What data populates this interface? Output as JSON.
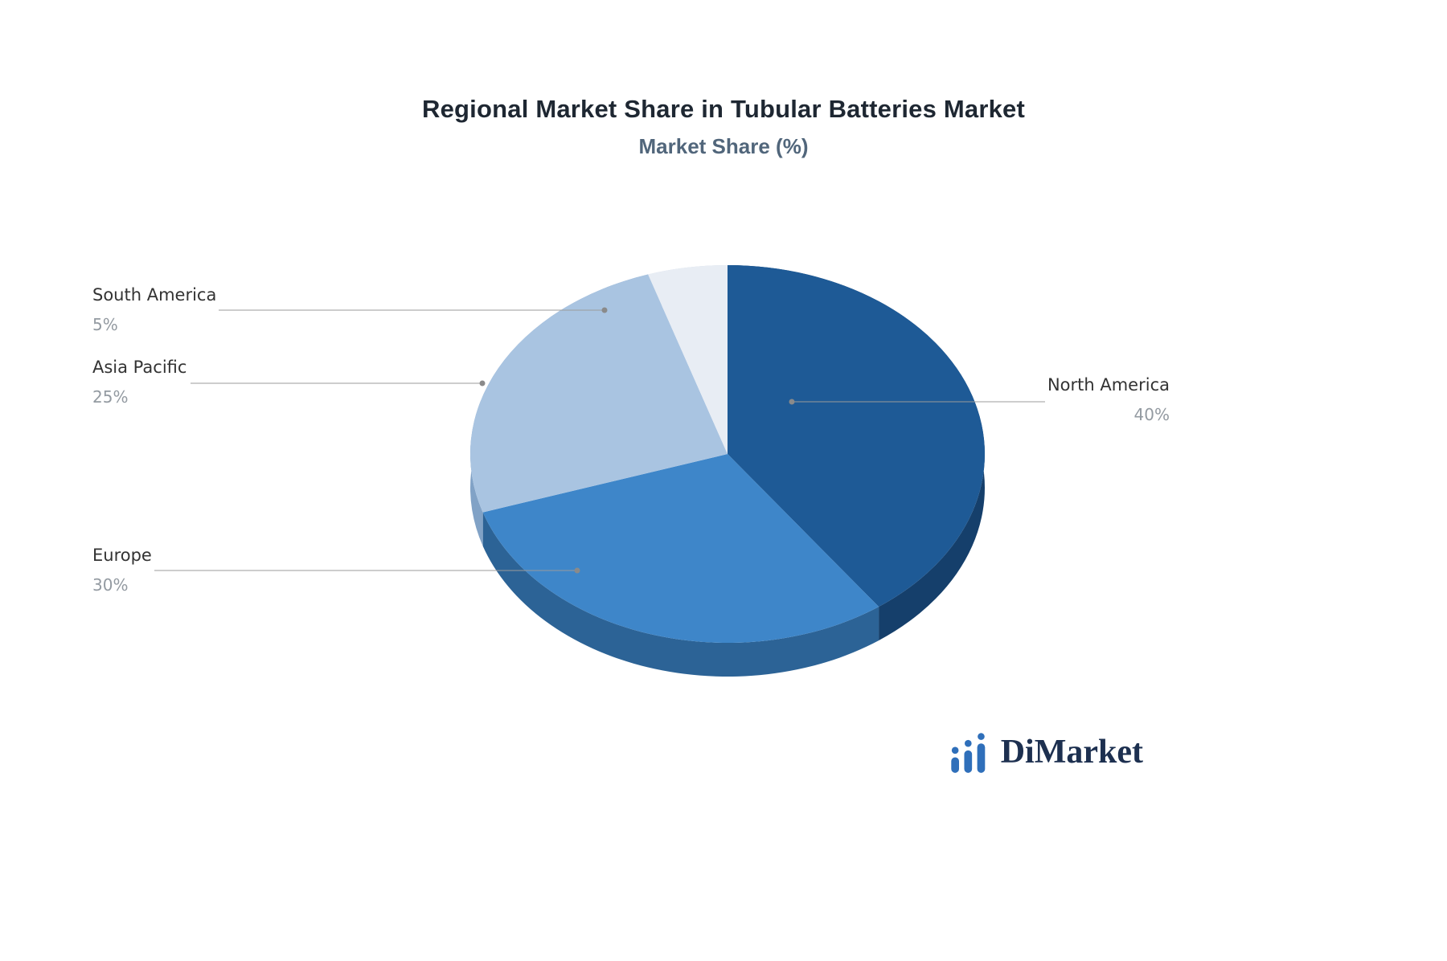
{
  "chart_data": {
    "type": "pie",
    "title": "Regional Market Share in Tubular Batteries Market",
    "subtitle": "Market Share (%)",
    "unit": "%",
    "labels": [
      "North America",
      "Europe",
      "Asia Pacific",
      "South America"
    ],
    "values": [
      40,
      30,
      25,
      5
    ],
    "value_labels": [
      "40%",
      "30%",
      "25%",
      "5%"
    ],
    "colors": [
      "#1e5a96",
      "#3e86c9",
      "#a9c4e1",
      "#e8edf4"
    ],
    "side_colors": [
      "#153f6b",
      "#2c6396",
      "#81a2c6",
      "#c6d2e2"
    ],
    "start_angle_deg": 0,
    "direction": "clockwise",
    "style": "pie-3d",
    "legend_position": "none",
    "grid": false,
    "label_name_color": "#333333",
    "label_value_color": "#939aa1",
    "leader_line_color": "#9b9b9b"
  },
  "logo": {
    "text": "DiMarket",
    "icon": "bar-chart-dots-icon",
    "text_color": "#1d3050",
    "icon_color": "#2f6fba"
  }
}
